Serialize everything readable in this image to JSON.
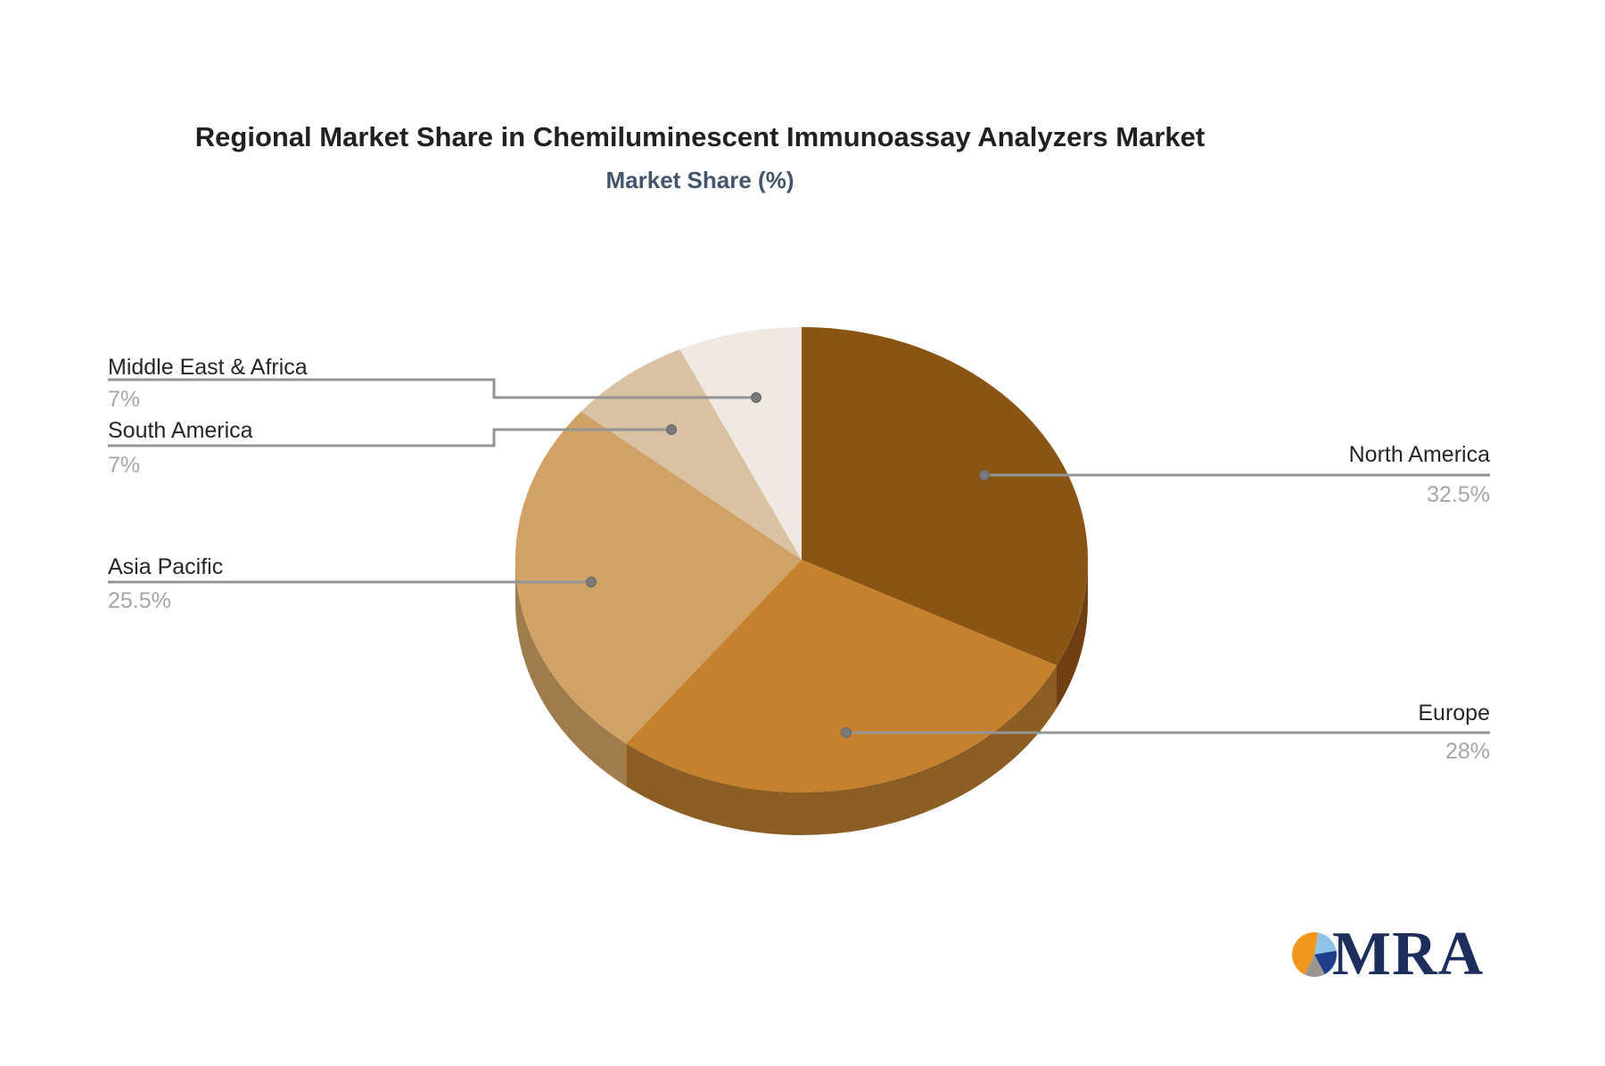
{
  "title": "Regional Market Share in Chemiluminescent Immunoassay Analyzers Market",
  "subtitle": "Market Share (%)",
  "chart_data": {
    "type": "pie",
    "is_3d": true,
    "start_angle_deg": 0,
    "direction": "clockwise",
    "legend": "none",
    "slices": [
      {
        "name": "North America",
        "value": 32.5,
        "pct_label": "32.5%",
        "color": "#8A5513",
        "side_color": "#6E3F10"
      },
      {
        "name": "Europe",
        "value": 28,
        "pct_label": "28%",
        "color": "#C6812F",
        "side_color": "#8C5E24"
      },
      {
        "name": "Asia Pacific",
        "value": 25.5,
        "pct_label": "25.5%",
        "color": "#D1A266",
        "side_color": "#A07C4D"
      },
      {
        "name": "South America",
        "value": 7,
        "pct_label": "7%",
        "color": "#D9C2A2"
      },
      {
        "name": "Middle East & Africa",
        "value": 7,
        "pct_label": "7%",
        "color": "#F0E9E2"
      }
    ]
  },
  "logo": {
    "text": "MRA",
    "text_color": "#1D2D5C",
    "mark_slices": [
      {
        "name": "orange-slice",
        "color": "#F2971B",
        "from_deg": 205,
        "to_deg": 370
      },
      {
        "name": "light-blue-slice",
        "color": "#8FC4E8",
        "from_deg": 10,
        "to_deg": 80
      },
      {
        "name": "navy-slice",
        "color": "#1F3E8C",
        "from_deg": 80,
        "to_deg": 152
      },
      {
        "name": "gray-slice",
        "color": "#9B9893",
        "from_deg": 152,
        "to_deg": 205
      }
    ]
  },
  "styles": {
    "background": "#FFFFFF",
    "title_color": "#212121",
    "subtitle_color": "#44546A",
    "name_color": "#262626",
    "pct_color": "#A6A6A6",
    "leader_color": "#949494",
    "dot_color": "#7A7A7A"
  }
}
